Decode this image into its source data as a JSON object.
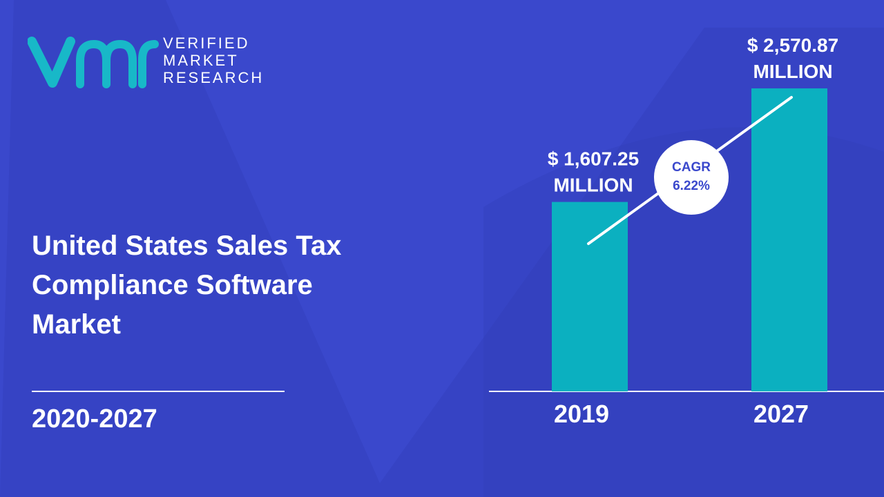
{
  "brand": {
    "lines": [
      "VERIFIED",
      "MARKET",
      "RESEARCH"
    ]
  },
  "title_lines": [
    "United States Sales Tax",
    "Compliance Software",
    "Market"
  ],
  "period": "2020-2027",
  "colors": {
    "background": "#3a48cc",
    "shape": "#3340bd",
    "bar": "#0bb0c0",
    "logo": "#18b8c8",
    "text": "#ffffff",
    "cagr_text": "#3a48cc"
  },
  "chart_data": {
    "type": "bar",
    "title": "",
    "xlabel": "",
    "ylabel": "",
    "categories": [
      "2019",
      "2027"
    ],
    "values": [
      1607.25,
      2570.87
    ],
    "value_labels": [
      [
        "$ 1,607.25",
        "MILLION"
      ],
      [
        "$ 2,570.87",
        "MILLION"
      ]
    ],
    "ylim": [
      0,
      2700
    ],
    "grid": false,
    "legend": "none",
    "annotation": {
      "lines": [
        "CAGR",
        "6.22%"
      ]
    }
  }
}
